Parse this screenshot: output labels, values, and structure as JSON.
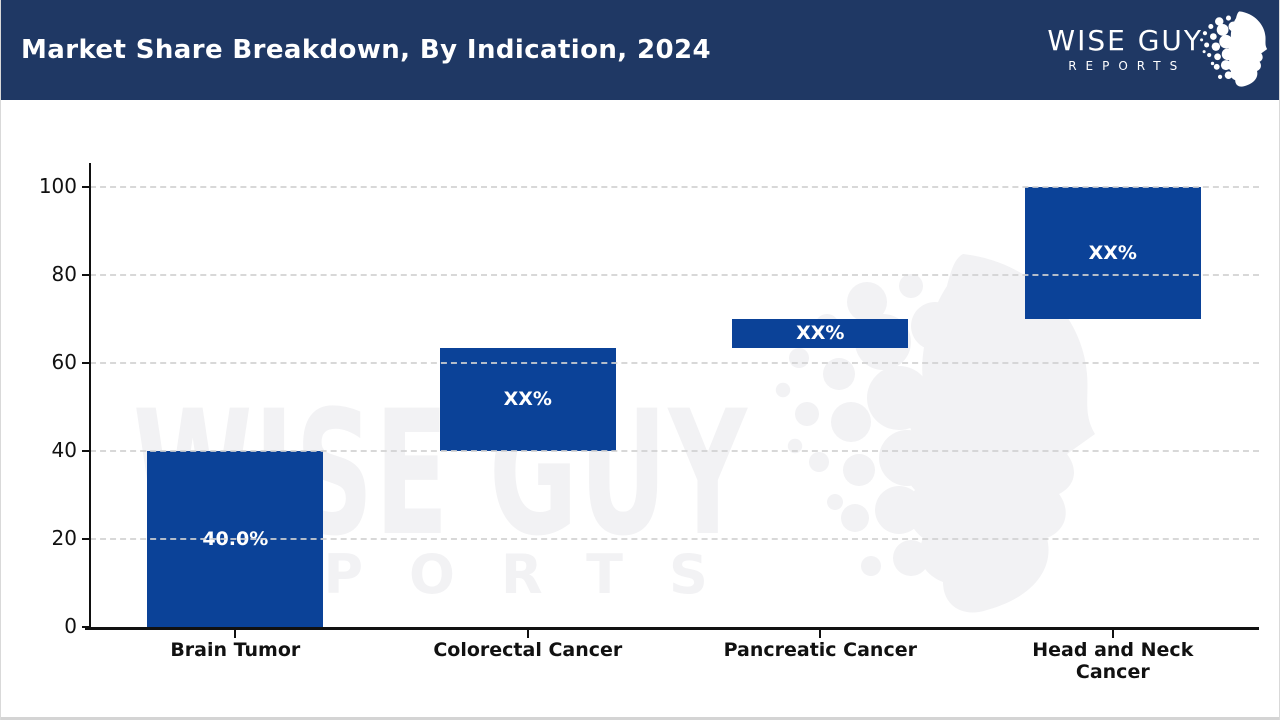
{
  "header": {
    "title": "Market Share Breakdown, By Indication, 2024",
    "bg_color": "#1f3864",
    "logo": {
      "line1": "WISE GUY",
      "line2": "REPORTS"
    }
  },
  "watermark": {
    "line1": "WISE GUY",
    "line2": "REPORTS"
  },
  "chart_data": {
    "type": "bar",
    "subtype": "waterfall",
    "title": "Market Share Breakdown, By Indication, 2024",
    "categories": [
      "Brain Tumor",
      "Colorectal Cancer",
      "Pancreatic Cancer",
      "Head and Neck Cancer"
    ],
    "segments": [
      {
        "category": "Brain Tumor",
        "start": 0,
        "end": 40,
        "label": "40.0%"
      },
      {
        "category": "Colorectal Cancer",
        "start": 40,
        "end": 63.5,
        "label": "XX%"
      },
      {
        "category": "Pancreatic Cancer",
        "start": 63.5,
        "end": 70,
        "label": "XX%"
      },
      {
        "category": "Head and Neck Cancer",
        "start": 70,
        "end": 100,
        "label": "XX%"
      }
    ],
    "xlabel": "",
    "ylabel": "",
    "ylim": [
      0,
      100
    ],
    "yticks": [
      0,
      20,
      40,
      60,
      80,
      100
    ],
    "grid": "horizontal-dashed-over-bars",
    "legend": "none",
    "bar_color": "#0b4298",
    "axis_color": "#111111",
    "grid_color": "#d2d2d2",
    "watermark_color": "#f2f2f4"
  }
}
